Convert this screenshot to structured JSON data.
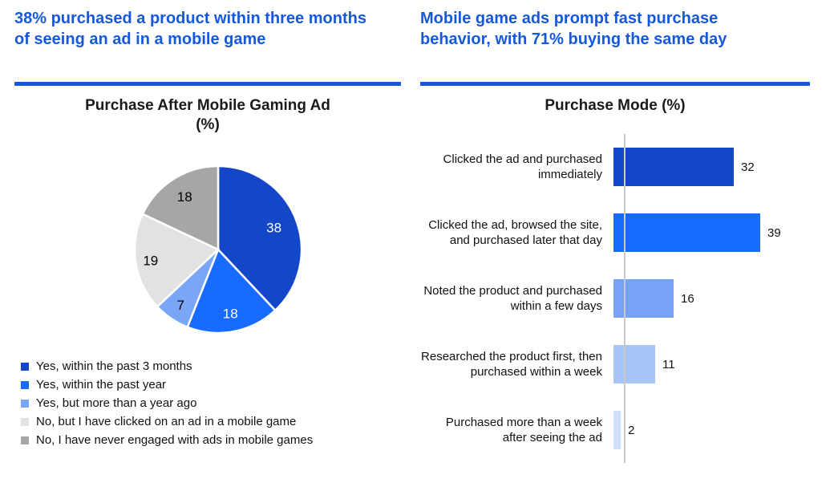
{
  "colors": {
    "accent": "#1658dc",
    "axis": "#c9c9c9"
  },
  "left": {
    "headline": "38% purchased a product within three months of seeing an ad in a mobile game"
  },
  "right": {
    "headline": "Mobile game ads prompt fast purchase behavior, with 71% buying the same day"
  },
  "chart_data": [
    {
      "type": "pie",
      "title": "Purchase After Mobile Gaming Ad (%)",
      "title_lines": [
        "Purchase After Mobile Gaming Ad",
        "(%)"
      ],
      "labels": [
        "Yes, within the past 3 months",
        "Yes, within the past year",
        "Yes, but more than a year ago",
        "No, but I have clicked on an ad in a mobile game",
        "No, I have never engaged with ads in mobile games"
      ],
      "values": [
        38,
        18,
        7,
        19,
        18
      ],
      "colors": [
        "#1446c8",
        "#186bff",
        "#7aa6f8",
        "#e2e2e2",
        "#a6a6a6"
      ],
      "label_colors": [
        "#ffffff",
        "#ffffff",
        "#000000",
        "#000000",
        "#000000"
      ],
      "start_angle_deg": 0,
      "direction": "clockwise",
      "legend_position": "bottom-left"
    },
    {
      "type": "bar",
      "orientation": "horizontal",
      "title": "Purchase Mode (%)",
      "categories": [
        "Clicked the ad and purchased immediately",
        "Clicked the ad, browsed the site, and purchased later that day",
        "Noted the product and purchased within a few days",
        "Researched the product first, then purchased within a week",
        "Purchased more than a week after seeing the ad"
      ],
      "values": [
        32,
        39,
        16,
        11,
        2
      ],
      "colors": [
        "#1446c8",
        "#186bff",
        "#76a3f5",
        "#a8c4f7",
        "#cfdef9"
      ],
      "xlim": [
        0,
        40
      ],
      "grid": false,
      "value_labels": true
    }
  ]
}
